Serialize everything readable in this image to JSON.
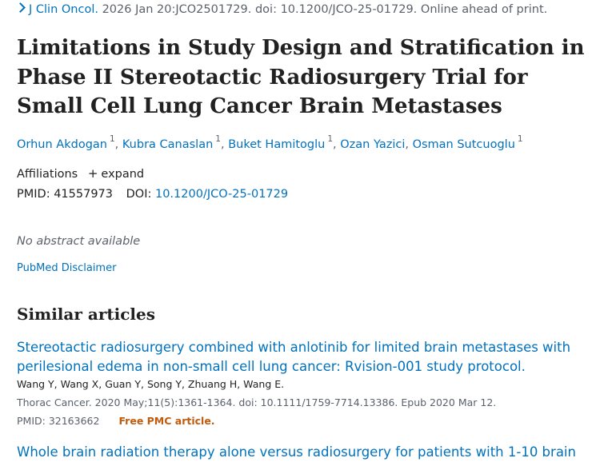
{
  "journal_line": {
    "journal": "J Clin Oncol.",
    "details": "2026 Jan 20:JCO2501729. doi: 10.1200/JCO-25-01729. Online ahead of print."
  },
  "title": "Limitations in Study Design and Stratification in Phase II Stereotactic Radiosurgery Trial for Small Cell Lung Cancer Brain Metastases",
  "authors": [
    {
      "name": "Orhun Akdogan",
      "sup": "1"
    },
    {
      "name": "Kubra Canaslan",
      "sup": "1"
    },
    {
      "name": "Buket Hamitoglu",
      "sup": "1"
    },
    {
      "name": "Ozan Yazici",
      "sup": ""
    },
    {
      "name": "Osman Sutcuoglu",
      "sup": "1"
    }
  ],
  "affiliations": {
    "label": "Affiliations",
    "expand": "expand"
  },
  "ids": {
    "pmid_label": "PMID:",
    "pmid": "41557973",
    "doi_label": "DOI:",
    "doi": "10.1200/JCO-25-01729"
  },
  "no_abstract": "No abstract available",
  "disclaimer": "PubMed Disclaimer",
  "similar": {
    "heading": "Similar articles",
    "articles": [
      {
        "title": "Stereotactic radiosurgery combined with anlotinib for limited brain metastases with perilesional edema in non-small cell lung cancer: Rvision-001 study protocol.",
        "authors": "Wang Y, Wang X, Guan Y, Song Y, Zhuang H, Wang E.",
        "citation": "Thorac Cancer. 2020 May;11(5):1361-1364. doi: 10.1111/1759-7714.13386. Epub 2020 Mar 12.",
        "pmid": "PMID: 32163662",
        "pmc": "Free PMC article."
      },
      {
        "title": "Whole brain radiation therapy alone versus radiosurgery for patients with 1-10 brain"
      }
    ]
  }
}
